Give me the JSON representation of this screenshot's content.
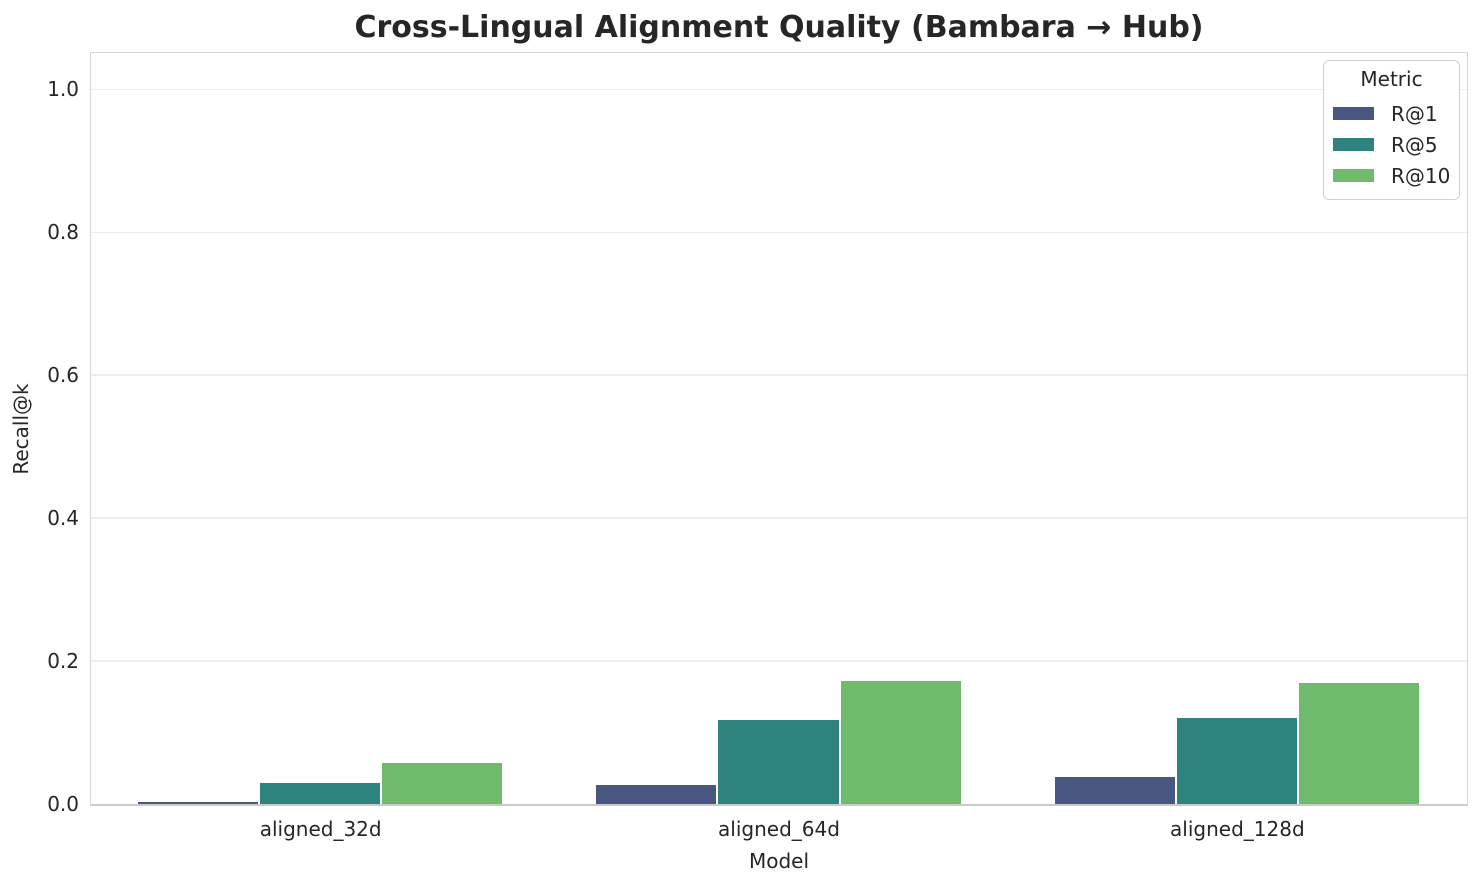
{
  "chart_data": {
    "type": "bar",
    "title": "Cross-Lingual Alignment Quality (Bambara → Hub)",
    "xlabel": "Model",
    "ylabel": "Recall@k",
    "categories": [
      "aligned_32d",
      "aligned_64d",
      "aligned_128d"
    ],
    "series": [
      {
        "name": "R@1",
        "color": "#475781",
        "values": [
          0.003,
          0.027,
          0.038
        ]
      },
      {
        "name": "R@5",
        "color": "#2f837f",
        "values": [
          0.029,
          0.117,
          0.12
        ]
      },
      {
        "name": "R@10",
        "color": "#6ebc6b",
        "values": [
          0.058,
          0.172,
          0.169
        ]
      }
    ],
    "ylim": [
      0,
      1.05
    ],
    "yticks": [
      0.0,
      0.2,
      0.4,
      0.6,
      0.8,
      1.0
    ],
    "ytick_labels": [
      "0.0",
      "0.2",
      "0.4",
      "0.6",
      "0.8",
      "1.0"
    ],
    "legend": {
      "title": "Metric",
      "position": "upper right"
    },
    "grid": true,
    "bar_group_fraction": 0.8
  },
  "style": {
    "background": "#ffffff",
    "text_color": "#262626",
    "grid_color": "#ededed",
    "spine_color": "#d6d6d6"
  }
}
